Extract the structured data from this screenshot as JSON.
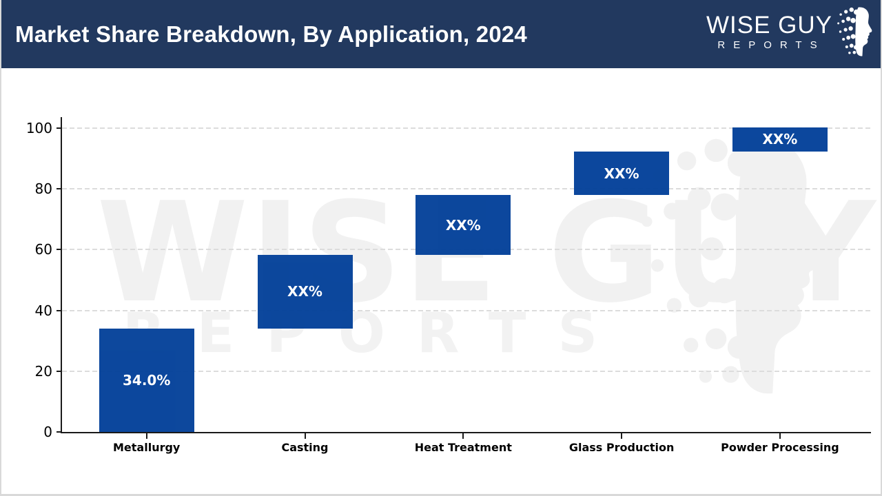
{
  "page": {
    "background": "#ffffff",
    "border_color": "#d9d9d9"
  },
  "header": {
    "title": "Market Share Breakdown, By Application, 2024",
    "background": "#22395f",
    "logo": {
      "line1": "WISE GUY",
      "line2": "REPORTS",
      "icon": "face-profile-dots-icon"
    }
  },
  "watermark": {
    "line1": "WISE GUY",
    "line2": "REPORTS",
    "icon": "face-profile-dots-icon"
  },
  "chart_data": {
    "type": "bar",
    "subtype": "waterfall",
    "title": "Market Share Breakdown, By Application, 2024",
    "categories": [
      "Metallurgy",
      "Casting",
      "Heat Treatment",
      "Glass Production",
      "Powder Processing"
    ],
    "segments": [
      {
        "category": "Metallurgy",
        "start": 0,
        "end": 34.0,
        "label": "34.0%"
      },
      {
        "category": "Casting",
        "start": 34.0,
        "end": 58.3,
        "label": "XX%"
      },
      {
        "category": "Heat Treatment",
        "start": 58.3,
        "end": 77.9,
        "label": "XX%"
      },
      {
        "category": "Glass Production",
        "start": 77.9,
        "end": 92.3,
        "label": "XX%"
      },
      {
        "category": "Powder Processing",
        "start": 92.3,
        "end": 100.3,
        "label": "XX%"
      }
    ],
    "yticks": [
      0,
      20,
      40,
      60,
      80,
      100
    ],
    "ylim": [
      0,
      103.6
    ],
    "xlabel": "",
    "ylabel": "",
    "grid": "horizontal-dashed",
    "legend_position": "none",
    "bar_color": "#003e98",
    "bar_label_color": "#ffffff",
    "axis_color": "#1a1a1a",
    "grid_color": "#dcdcdc"
  }
}
